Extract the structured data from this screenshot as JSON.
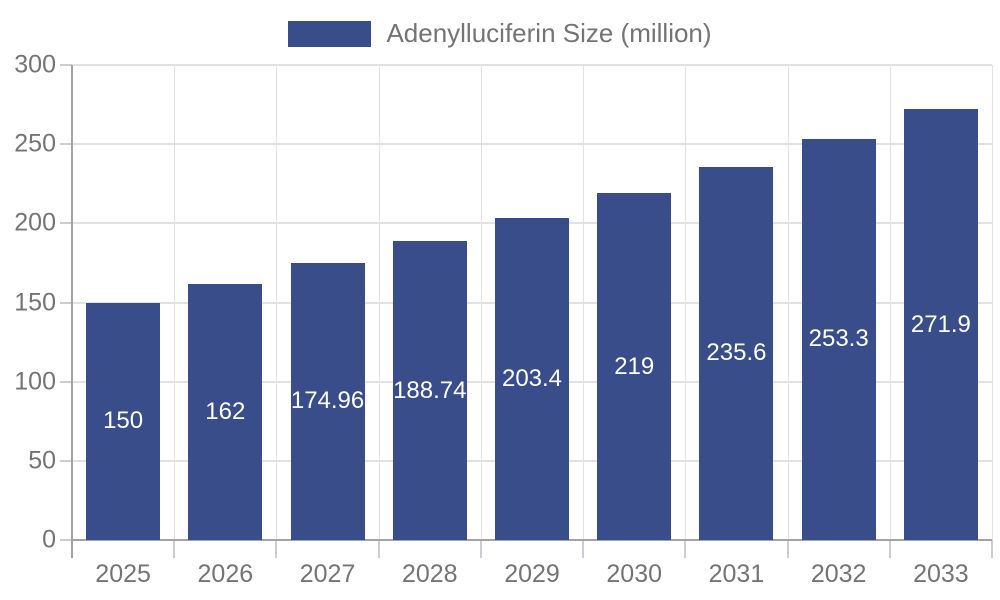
{
  "chart_data": {
    "type": "bar",
    "title": "",
    "legend_label": "Adenylluciferin Size (million)",
    "legend_position": "top-center",
    "categories": [
      "2025",
      "2026",
      "2027",
      "2028",
      "2029",
      "2030",
      "2031",
      "2032",
      "2033"
    ],
    "values": [
      150,
      162,
      174.96,
      188.74,
      203.4,
      219,
      235.6,
      253.3,
      271.9
    ],
    "value_labels": [
      "150",
      "162",
      "174.96",
      "188.74",
      "203.4",
      "219",
      "235.6",
      "253.3",
      "271.9"
    ],
    "xlabel": "",
    "ylabel": "",
    "ylim": [
      0,
      300
    ],
    "yticks": [
      0,
      50,
      100,
      150,
      200,
      250,
      300
    ],
    "grid": true,
    "colors": {
      "bar": "#3a4d8b",
      "gridline": "#e2e2e2",
      "axis": "#a3a3a3",
      "tick_mark": "#ccccd6",
      "tick_label": "#747474",
      "value_label": "#ffffff",
      "background": "#ffffff"
    }
  }
}
